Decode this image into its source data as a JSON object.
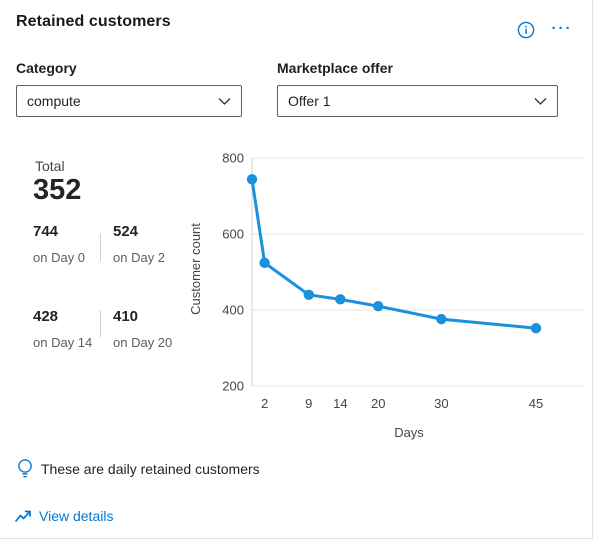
{
  "header": {
    "title": "Retained customers",
    "more_glyph": "···"
  },
  "filters": {
    "category": {
      "label": "Category",
      "value": "compute"
    },
    "marketplace_offer": {
      "label": "Marketplace offer",
      "value": "Offer 1"
    }
  },
  "stats": {
    "total_label": "Total",
    "total_value": "352",
    "items": [
      {
        "value": "744",
        "caption": "on Day 0"
      },
      {
        "value": "524",
        "caption": "on Day 2"
      },
      {
        "value": "428",
        "caption": "on Day 14"
      },
      {
        "value": "410",
        "caption": "on Day 20"
      }
    ]
  },
  "chart_data": {
    "type": "line",
    "x": [
      0,
      2,
      9,
      14,
      20,
      30,
      45
    ],
    "values": [
      744,
      524,
      440,
      428,
      410,
      376,
      352
    ],
    "title": "",
    "xlabel": "Days",
    "ylabel": "Customer count",
    "xlim": [
      0,
      47
    ],
    "ylim": [
      200,
      800
    ],
    "xticks": [
      2,
      9,
      14,
      20,
      30,
      45
    ],
    "yticks": [
      200,
      400,
      600,
      800
    ],
    "grid": "horizontal",
    "legend": "none",
    "line_color": "#1b90dd"
  },
  "tip": {
    "text": "These are daily retained customers"
  },
  "footer": {
    "view_details_label": "View details"
  },
  "colors": {
    "accent": "#0078d4",
    "chart_line": "#1b90dd",
    "grid_line": "#e5e5e5",
    "axis_line": "#d2d0ce",
    "border": "#e1e1e1",
    "muted_text": "#605e5c"
  }
}
